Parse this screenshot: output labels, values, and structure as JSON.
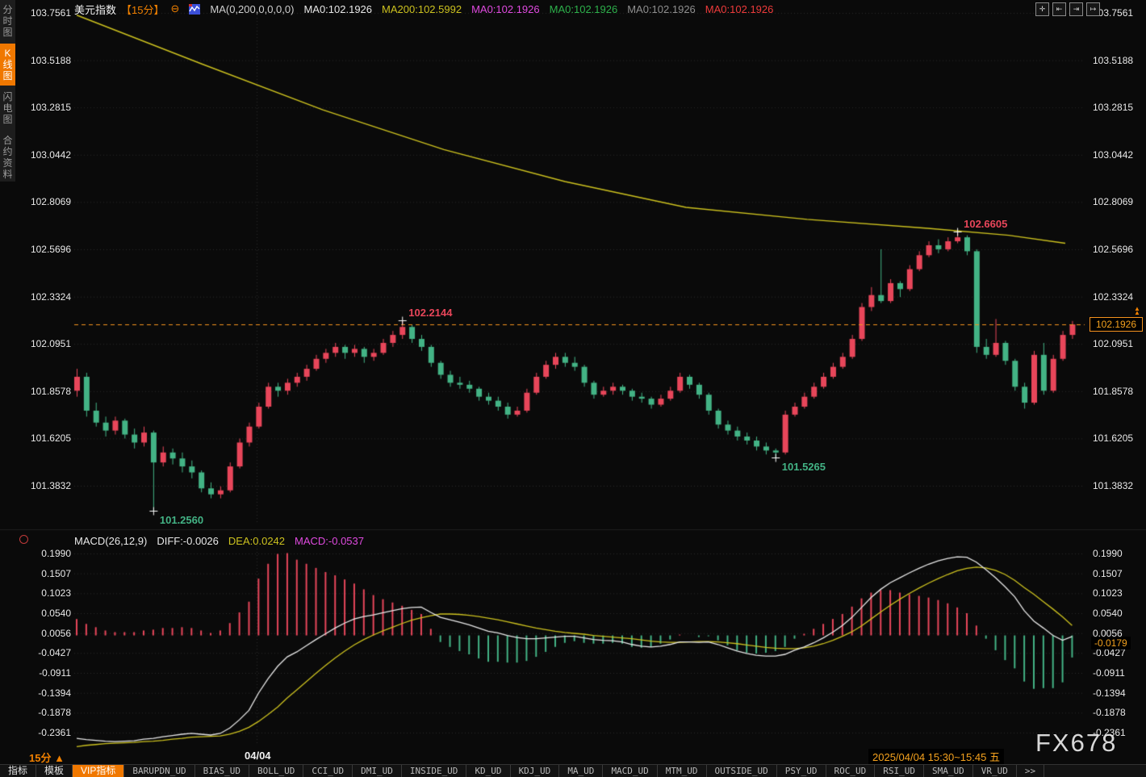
{
  "header": {
    "symbol": "美元指数",
    "period": "【15分】",
    "collapse_glyph": "⊖",
    "indicator_label": "MA(0,200,0,0,0,0)",
    "ma_items": [
      {
        "label": "MA0:102.1926",
        "color": "#e8e8e8"
      },
      {
        "label": "MA200:102.5992",
        "color": "#cdc21f"
      },
      {
        "label": "MA0:102.1926",
        "color": "#e04ae0"
      },
      {
        "label": "MA0:102.1926",
        "color": "#2db14b"
      },
      {
        "label": "MA0:102.1926",
        "color": "#8f8f8f"
      },
      {
        "label": "MA0:102.1926",
        "color": "#ee3b3b"
      }
    ],
    "toolbar_icons": [
      {
        "name": "crosshair-icon",
        "glyph": "✛"
      },
      {
        "name": "scale-left-icon",
        "glyph": "⇤"
      },
      {
        "name": "scale-right-icon",
        "glyph": "⇥"
      },
      {
        "name": "pan-right-icon",
        "glyph": "↦"
      }
    ]
  },
  "sidebar": {
    "items": [
      {
        "label": "分时图",
        "active": false
      },
      {
        "label": "K线图",
        "active": true
      },
      {
        "label": "闪电图",
        "active": false
      },
      {
        "label": "合约资料",
        "active": false
      }
    ]
  },
  "macd_legend": {
    "title": "MACD(26,12,9)",
    "diff_label": "DIFF:-0.0026",
    "dea_label": "DEA:0.0242",
    "macd_label": "MACD:-0.0537",
    "diff_color": "#e8e8e8",
    "dea_color": "#cdc21f",
    "macd_color": "#e04ae0"
  },
  "timeline": {
    "period": "15分",
    "arrow": "▲",
    "date_label": "04/04",
    "range_label": "2025/04/04 15:30~15:45 五"
  },
  "watermark": "FX678",
  "tabs": [
    {
      "label": "指标",
      "style": "cn",
      "active": false
    },
    {
      "label": "模板",
      "style": "cn",
      "active": false
    },
    {
      "label": "VIP指标",
      "style": "cn",
      "active": true
    },
    {
      "label": "BARUPDN_UD",
      "style": "mono",
      "active": false
    },
    {
      "label": "BIAS_UD",
      "style": "mono",
      "active": false
    },
    {
      "label": "BOLL_UD",
      "style": "mono",
      "active": false
    },
    {
      "label": "CCI_UD",
      "style": "mono",
      "active": false
    },
    {
      "label": "DMI_UD",
      "style": "mono",
      "active": false
    },
    {
      "label": "INSIDE_UD",
      "style": "mono",
      "active": false
    },
    {
      "label": "KD_UD",
      "style": "mono",
      "active": false
    },
    {
      "label": "KDJ_UD",
      "style": "mono",
      "active": false
    },
    {
      "label": "MA_UD",
      "style": "mono",
      "active": false
    },
    {
      "label": "MACD_UD",
      "style": "mono",
      "active": false
    },
    {
      "label": "MTM_UD",
      "style": "mono",
      "active": false
    },
    {
      "label": "OUTSIDE_UD",
      "style": "mono",
      "active": false
    },
    {
      "label": "PSY_UD",
      "style": "mono",
      "active": false
    },
    {
      "label": "ROC_UD",
      "style": "mono",
      "active": false
    },
    {
      "label": "RSI_UD",
      "style": "mono",
      "active": false
    },
    {
      "label": "SMA_UD",
      "style": "mono",
      "active": false
    },
    {
      "label": "VR_UD",
      "style": "mono",
      "active": false
    },
    {
      "label": ">>",
      "style": "mono",
      "active": false
    }
  ],
  "chart_data": {
    "type": "candlestick+macd",
    "title": "美元指数 15分 K线图",
    "colors": {
      "up": "#e8465a",
      "down": "#43b385",
      "ma200": "#cdc21f",
      "diff_line": "#e8e8e8",
      "dea_line": "#cdc21f",
      "grid": "#2b2b2b",
      "current_line": "#f5921e",
      "marker": "#ffffff"
    },
    "price_panel": {
      "axis_labels": [
        103.7561,
        103.5188,
        103.2815,
        103.0442,
        102.8069,
        102.5696,
        102.3324,
        102.0951,
        101.8578,
        101.6205,
        101.3832
      ],
      "current_price": 102.1926,
      "annotations": [
        {
          "index": 8,
          "side": "low",
          "text": "101.2560",
          "color": "#43b385"
        },
        {
          "index": 34,
          "side": "high",
          "text": "102.2144",
          "color": "#e8465a"
        },
        {
          "index": 73,
          "side": "low",
          "text": "101.5265",
          "color": "#43b385"
        },
        {
          "index": 92,
          "side": "high",
          "text": "102.6605",
          "color": "#e8465a"
        }
      ],
      "ma200_points": [
        [
          95,
          103.745
        ],
        [
          250,
          103.5
        ],
        [
          400,
          103.27
        ],
        [
          550,
          103.07
        ],
        [
          700,
          102.91
        ],
        [
          850,
          102.78
        ],
        [
          1000,
          102.72
        ],
        [
          1150,
          102.675
        ],
        [
          1250,
          102.64
        ],
        [
          1320,
          102.6
        ]
      ],
      "candles": [
        [
          101.86,
          101.97,
          101.83,
          101.93
        ],
        [
          101.93,
          101.95,
          101.73,
          101.76
        ],
        [
          101.76,
          101.8,
          101.68,
          101.7
        ],
        [
          101.7,
          101.73,
          101.63,
          101.66
        ],
        [
          101.66,
          101.73,
          101.64,
          101.71
        ],
        [
          101.71,
          101.72,
          101.62,
          101.64
        ],
        [
          101.64,
          101.67,
          101.57,
          101.6
        ],
        [
          101.6,
          101.68,
          101.58,
          101.65
        ],
        [
          101.65,
          101.66,
          101.256,
          101.5
        ],
        [
          101.5,
          101.58,
          101.48,
          101.55
        ],
        [
          101.55,
          101.57,
          101.49,
          101.52
        ],
        [
          101.52,
          101.55,
          101.45,
          101.48
        ],
        [
          101.48,
          101.51,
          101.42,
          101.45
        ],
        [
          101.45,
          101.46,
          101.35,
          101.37
        ],
        [
          101.37,
          101.4,
          101.32,
          101.34
        ],
        [
          101.34,
          101.38,
          101.32,
          101.36
        ],
        [
          101.36,
          101.5,
          101.35,
          101.48
        ],
        [
          101.48,
          101.62,
          101.47,
          101.6
        ],
        [
          101.6,
          101.7,
          101.58,
          101.68
        ],
        [
          101.68,
          101.8,
          101.67,
          101.78
        ],
        [
          101.78,
          101.9,
          101.77,
          101.88
        ],
        [
          101.88,
          101.9,
          101.83,
          101.86
        ],
        [
          101.86,
          101.92,
          101.84,
          101.9
        ],
        [
          101.9,
          101.95,
          101.88,
          101.93
        ],
        [
          101.93,
          101.99,
          101.91,
          101.97
        ],
        [
          101.97,
          102.04,
          101.96,
          102.02
        ],
        [
          102.02,
          102.07,
          102.0,
          102.05
        ],
        [
          102.05,
          102.1,
          102.03,
          102.08
        ],
        [
          102.08,
          102.09,
          102.02,
          102.05
        ],
        [
          102.05,
          102.09,
          102.03,
          102.07
        ],
        [
          102.07,
          102.08,
          102.0,
          102.03
        ],
        [
          102.03,
          102.07,
          102.01,
          102.05
        ],
        [
          102.05,
          102.12,
          102.04,
          102.1
        ],
        [
          102.1,
          102.16,
          102.08,
          102.14
        ],
        [
          102.14,
          102.2144,
          102.12,
          102.18
        ],
        [
          102.18,
          102.19,
          102.1,
          102.12
        ],
        [
          102.12,
          102.14,
          102.06,
          102.08
        ],
        [
          102.08,
          102.09,
          101.98,
          102.0
        ],
        [
          102.0,
          102.01,
          101.92,
          101.94
        ],
        [
          101.94,
          101.96,
          101.88,
          101.9
        ],
        [
          101.9,
          101.93,
          101.87,
          101.89
        ],
        [
          101.89,
          101.91,
          101.85,
          101.87
        ],
        [
          101.87,
          101.88,
          101.81,
          101.83
        ],
        [
          101.83,
          101.85,
          101.79,
          101.81
        ],
        [
          101.81,
          101.83,
          101.76,
          101.78
        ],
        [
          101.78,
          101.8,
          101.72,
          101.74
        ],
        [
          101.74,
          101.78,
          101.73,
          101.76
        ],
        [
          101.76,
          101.87,
          101.75,
          101.85
        ],
        [
          101.85,
          101.95,
          101.84,
          101.93
        ],
        [
          101.93,
          102.01,
          101.92,
          101.99
        ],
        [
          101.99,
          102.05,
          101.97,
          102.03
        ],
        [
          102.03,
          102.05,
          101.98,
          102.0
        ],
        [
          102.0,
          102.03,
          101.96,
          101.98
        ],
        [
          101.98,
          101.99,
          101.88,
          101.9
        ],
        [
          101.9,
          101.91,
          101.82,
          101.84
        ],
        [
          101.84,
          101.88,
          101.83,
          101.86
        ],
        [
          101.86,
          101.9,
          101.84,
          101.88
        ],
        [
          101.88,
          101.89,
          101.84,
          101.86
        ],
        [
          101.86,
          101.87,
          101.81,
          101.83
        ],
        [
          101.83,
          101.85,
          101.8,
          101.82
        ],
        [
          101.82,
          101.83,
          101.77,
          101.79
        ],
        [
          101.79,
          101.84,
          101.78,
          101.82
        ],
        [
          101.82,
          101.88,
          101.81,
          101.86
        ],
        [
          101.86,
          101.95,
          101.85,
          101.93
        ],
        [
          101.93,
          101.94,
          101.87,
          101.89
        ],
        [
          101.89,
          101.9,
          101.82,
          101.84
        ],
        [
          101.84,
          101.85,
          101.74,
          101.76
        ],
        [
          101.76,
          101.77,
          101.67,
          101.69
        ],
        [
          101.69,
          101.71,
          101.64,
          101.66
        ],
        [
          101.66,
          101.68,
          101.61,
          101.63
        ],
        [
          101.63,
          101.65,
          101.59,
          101.61
        ],
        [
          101.61,
          101.63,
          101.56,
          101.58
        ],
        [
          101.58,
          101.6,
          101.54,
          101.56
        ],
        [
          101.56,
          101.57,
          101.5265,
          101.55
        ],
        [
          101.55,
          101.76,
          101.54,
          101.74
        ],
        [
          101.74,
          101.8,
          101.73,
          101.78
        ],
        [
          101.78,
          101.85,
          101.77,
          101.83
        ],
        [
          101.83,
          101.9,
          101.82,
          101.88
        ],
        [
          101.88,
          101.95,
          101.87,
          101.93
        ],
        [
          101.93,
          102.0,
          101.92,
          101.98
        ],
        [
          101.98,
          102.05,
          101.97,
          102.03
        ],
        [
          102.03,
          102.14,
          102.02,
          102.12
        ],
        [
          102.12,
          102.3,
          102.11,
          102.28
        ],
        [
          102.28,
          102.38,
          102.26,
          102.34
        ],
        [
          102.34,
          102.57,
          102.3,
          102.31
        ],
        [
          102.31,
          102.42,
          102.3,
          102.4
        ],
        [
          102.4,
          102.41,
          102.33,
          102.37
        ],
        [
          102.37,
          102.49,
          102.36,
          102.47
        ],
        [
          102.47,
          102.56,
          102.46,
          102.54
        ],
        [
          102.54,
          102.61,
          102.53,
          102.59
        ],
        [
          102.59,
          102.62,
          102.55,
          102.57
        ],
        [
          102.57,
          102.63,
          102.56,
          102.61
        ],
        [
          102.61,
          102.6605,
          102.6,
          102.63
        ],
        [
          102.63,
          102.64,
          102.54,
          102.56
        ],
        [
          102.56,
          102.57,
          102.05,
          102.08
        ],
        [
          102.08,
          102.12,
          102.02,
          102.04
        ],
        [
          102.04,
          102.22,
          102.03,
          102.1
        ],
        [
          102.1,
          102.11,
          101.99,
          102.01
        ],
        [
          102.01,
          102.02,
          101.86,
          101.88
        ],
        [
          101.88,
          101.9,
          101.77,
          101.8
        ],
        [
          101.8,
          102.06,
          101.79,
          102.04
        ],
        [
          102.04,
          102.1,
          101.84,
          101.86
        ],
        [
          101.86,
          102.04,
          101.85,
          102.02
        ],
        [
          102.02,
          102.16,
          102.01,
          102.14
        ],
        [
          102.14,
          102.21,
          102.12,
          102.1926
        ]
      ]
    },
    "macd_panel": {
      "axis_labels": [
        0.199,
        0.1507,
        0.1023,
        0.054,
        0.0056,
        -0.0427,
        -0.0911,
        -0.1394,
        -0.1878,
        -0.2361
      ],
      "current_value": -0.0179,
      "diff": [
        -0.25,
        -0.253,
        -0.255,
        -0.257,
        -0.258,
        -0.257,
        -0.256,
        -0.252,
        -0.25,
        -0.246,
        -0.243,
        -0.24,
        -0.238,
        -0.24,
        -0.242,
        -0.238,
        -0.225,
        -0.205,
        -0.182,
        -0.14,
        -0.105,
        -0.075,
        -0.052,
        -0.04,
        -0.025,
        -0.01,
        0.004,
        0.018,
        0.03,
        0.04,
        0.046,
        0.05,
        0.055,
        0.06,
        0.065,
        0.068,
        0.069,
        0.056,
        0.044,
        0.038,
        0.032,
        0.026,
        0.018,
        0.01,
        0.006,
        0.0,
        -0.005,
        -0.008,
        -0.008,
        -0.006,
        -0.004,
        -0.002,
        -0.002,
        -0.006,
        -0.01,
        -0.012,
        -0.013,
        -0.016,
        -0.022,
        -0.026,
        -0.028,
        -0.026,
        -0.022,
        -0.016,
        -0.016,
        -0.017,
        -0.016,
        -0.022,
        -0.03,
        -0.038,
        -0.044,
        -0.048,
        -0.05,
        -0.05,
        -0.046,
        -0.036,
        -0.028,
        -0.018,
        -0.006,
        0.008,
        0.024,
        0.044,
        0.068,
        0.092,
        0.112,
        0.128,
        0.14,
        0.152,
        0.163,
        0.173,
        0.181,
        0.187,
        0.191,
        0.19,
        0.178,
        0.16,
        0.14,
        0.118,
        0.094,
        0.06,
        0.035,
        0.018,
        0.0,
        -0.012,
        -0.0026
      ],
      "dea": [
        -0.27,
        -0.267,
        -0.265,
        -0.263,
        -0.262,
        -0.261,
        -0.26,
        -0.258,
        -0.257,
        -0.255,
        -0.252,
        -0.25,
        -0.247,
        -0.246,
        -0.245,
        -0.244,
        -0.24,
        -0.233,
        -0.223,
        -0.209,
        -0.192,
        -0.174,
        -0.152,
        -0.132,
        -0.112,
        -0.092,
        -0.073,
        -0.055,
        -0.038,
        -0.023,
        -0.01,
        0.001,
        0.011,
        0.02,
        0.029,
        0.037,
        0.043,
        0.048,
        0.052,
        0.052,
        0.051,
        0.049,
        0.046,
        0.042,
        0.038,
        0.033,
        0.028,
        0.023,
        0.018,
        0.014,
        0.01,
        0.007,
        0.005,
        0.003,
        0.0,
        -0.002,
        -0.004,
        -0.006,
        -0.008,
        -0.011,
        -0.014,
        -0.016,
        -0.017,
        -0.017,
        -0.016,
        -0.015,
        -0.015,
        -0.016,
        -0.018,
        -0.02,
        -0.023,
        -0.026,
        -0.029,
        -0.031,
        -0.032,
        -0.032,
        -0.03,
        -0.026,
        -0.02,
        -0.012,
        -0.002,
        0.009,
        0.023,
        0.04,
        0.057,
        0.073,
        0.088,
        0.102,
        0.115,
        0.127,
        0.138,
        0.148,
        0.157,
        0.163,
        0.166,
        0.164,
        0.158,
        0.148,
        0.134,
        0.116,
        0.1,
        0.082,
        0.064,
        0.045,
        0.0242
      ]
    }
  }
}
